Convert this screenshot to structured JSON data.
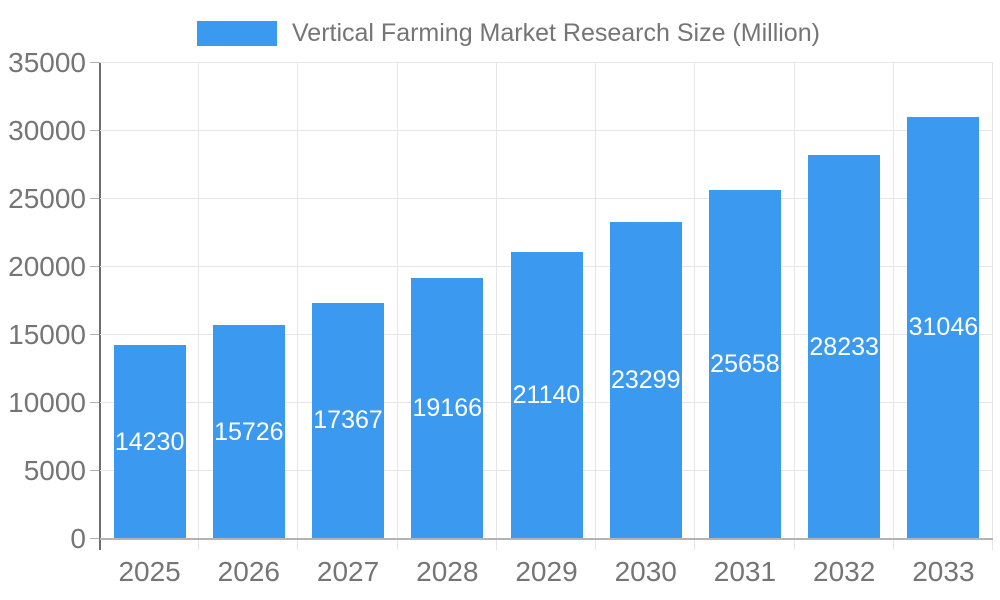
{
  "chart_data": {
    "type": "bar",
    "title": "Vertical Farming Market Research Size (Million)",
    "legend": {
      "position": "top",
      "items": [
        {
          "label": "Vertical Farming Market Research Size (Million)",
          "color": "#3b9af0"
        }
      ]
    },
    "categories": [
      "2025",
      "2026",
      "2027",
      "2028",
      "2029",
      "2030",
      "2031",
      "2032",
      "2033"
    ],
    "series": [
      {
        "name": "Vertical Farming Market Research Size (Million)",
        "values": [
          14230,
          15726,
          17367,
          19166,
          21140,
          23299,
          25658,
          28233,
          31046
        ]
      }
    ],
    "xlabel": "",
    "ylabel": "",
    "ylim": [
      0,
      35000
    ],
    "ytick_step": 5000,
    "yticks": [
      0,
      5000,
      10000,
      15000,
      20000,
      25000,
      30000,
      35000
    ],
    "grid": true,
    "value_labels": "inside-center-white",
    "colors": {
      "bar": "#3b9af0",
      "value_label": "#ffffff",
      "axis_text": "#757575",
      "gridline": "#e6e6e6",
      "axis_line": "#6e6e6e",
      "baseline": "#b3b3b3",
      "tick": "#b3b3b3"
    }
  }
}
